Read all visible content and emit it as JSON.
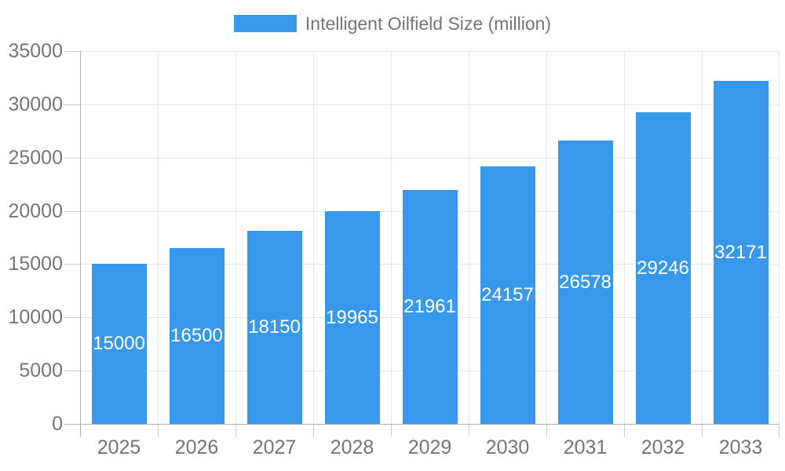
{
  "legend": {
    "label": "Intelligent Oilfield Size (million)"
  },
  "chart_data": {
    "type": "bar",
    "title": "Intelligent Oilfield Size (million)",
    "categories": [
      "2025",
      "2026",
      "2027",
      "2028",
      "2029",
      "2030",
      "2031",
      "2032",
      "2033"
    ],
    "series": [
      {
        "name": "Intelligent Oilfield Size (million)",
        "values": [
          15000,
          16500,
          18150,
          19965,
          21961,
          24157,
          26578,
          29246,
          32171
        ]
      }
    ],
    "data_labels_shown": true,
    "xlabel": "",
    "ylabel": "",
    "ylim": [
      0,
      35000
    ],
    "yticks": [
      0,
      5000,
      10000,
      15000,
      20000,
      25000,
      30000,
      35000
    ],
    "grid": true,
    "legend_position": "top-center",
    "bar_color": "#3898EC",
    "data_label_color": "#FFFFFF",
    "axis_text_color": "#757575",
    "gridline_color": "#E6E6E6",
    "axis_line_color": "#B3B3B3",
    "tick_color": "#CCCCCC",
    "background_color": "#FFFFFF"
  }
}
